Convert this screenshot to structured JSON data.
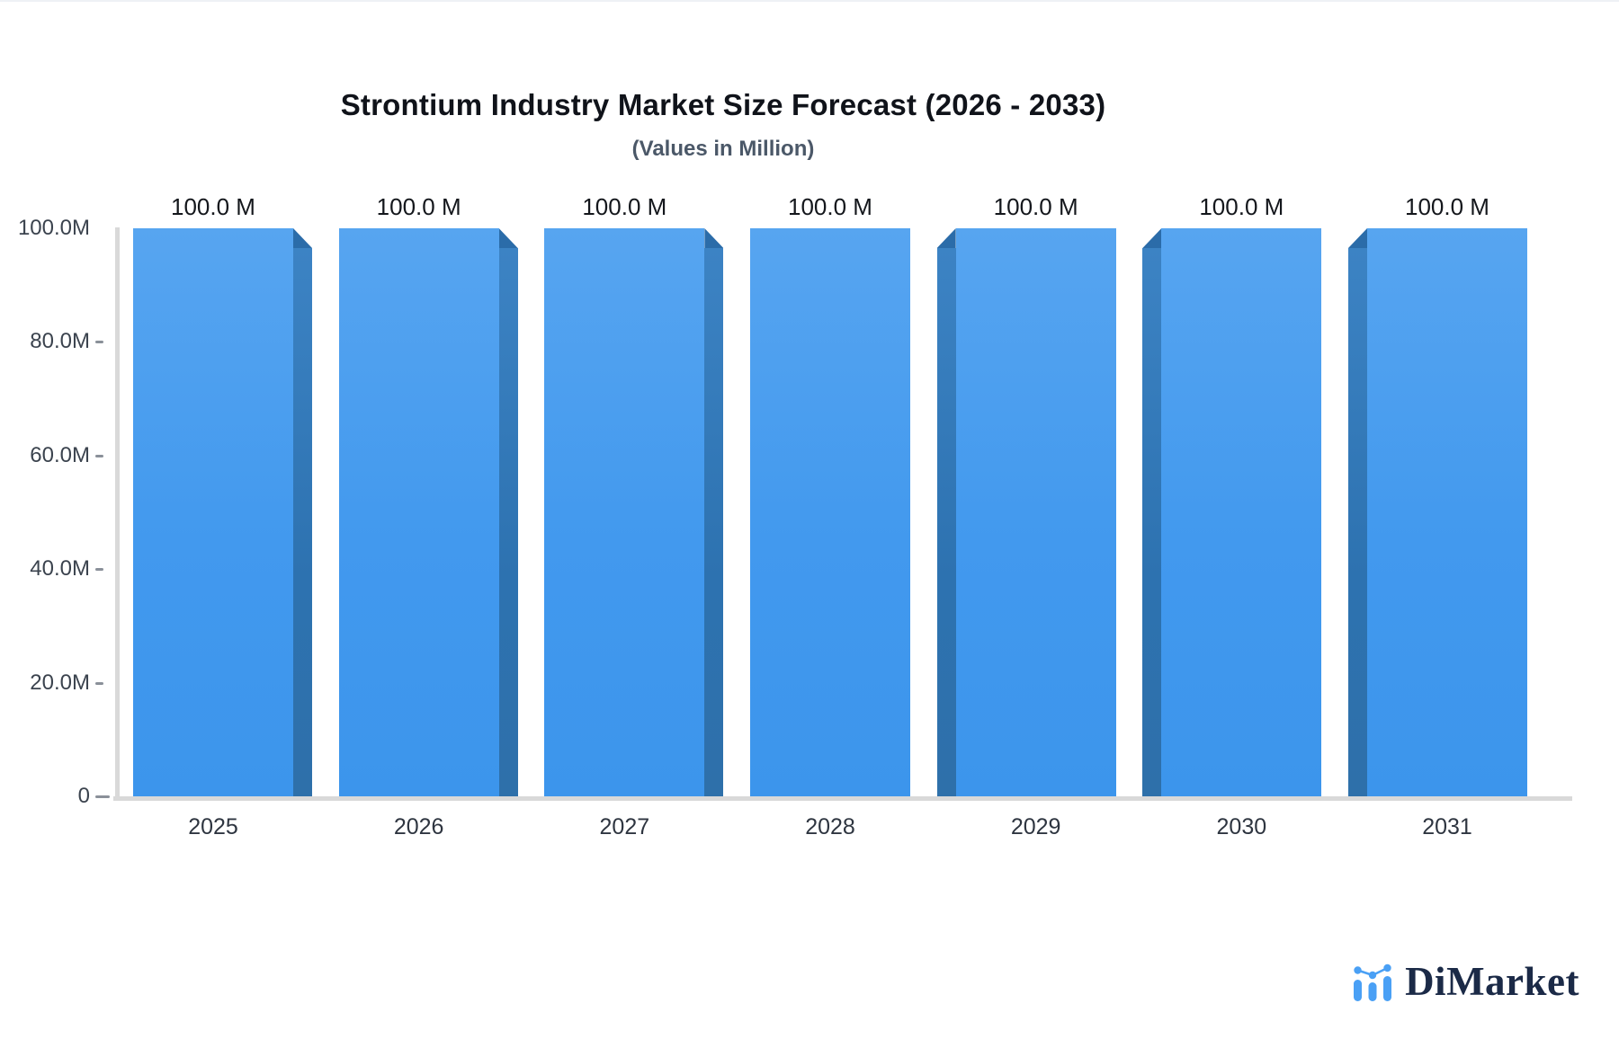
{
  "chart_data": {
    "type": "bar",
    "title": "Strontium Industry Market Size Forecast (2026 - 2033)",
    "subtitle": "(Values in Million)",
    "categories": [
      "2025",
      "2026",
      "2027",
      "2028",
      "2029",
      "2030",
      "2031"
    ],
    "values": [
      100.0,
      100.0,
      100.0,
      100.0,
      100.0,
      100.0,
      100.0
    ],
    "value_labels": [
      "100.0 M",
      "100.0 M",
      "100.0 M",
      "100.0 M",
      "100.0 M",
      "100.0 M",
      "100.0 M"
    ],
    "unit": "Million",
    "xlabel": "",
    "ylabel": "",
    "ylim": [
      0,
      100
    ],
    "y_axis": {
      "ticks": [
        "100.0M",
        "80.0M",
        "60.0M",
        "40.0M",
        "20.0M",
        "0"
      ]
    },
    "grid": false,
    "legend": "none",
    "style": {
      "bar_face_top": "#57a5f0",
      "bar_face_bottom": "#3c95ec",
      "bar_side": "#2d72b0",
      "bar_effect": "3d-bevel",
      "axis_line_color": "#d9d9d9",
      "value_label_color": "#14171c",
      "tick_label_color": "#3b434e"
    }
  },
  "branding": {
    "logo_text": "DiMarket",
    "logo_icon": "bar-line-chart-icon",
    "logo_text_color": "#1b2a47",
    "logo_accent_color": "#4aa0f5"
  }
}
